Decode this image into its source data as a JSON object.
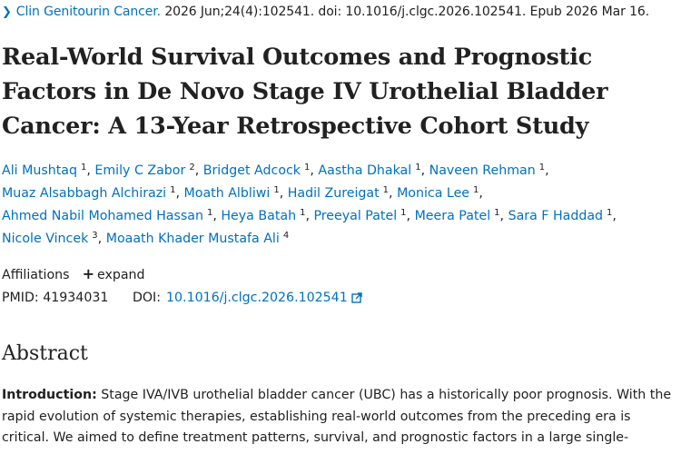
{
  "citation": {
    "journal": "Clin Genitourin Cancer.",
    "details": "2026 Jun;24(4):102541. doi: 10.1016/j.clgc.2026.102541. Epub 2026 Mar 16."
  },
  "title": "Real-World Survival Outcomes and Prognostic Factors in De Novo Stage IV Urothelial Bladder Cancer: A 13-Year Retrospective Cohort Study",
  "authors": [
    {
      "name": "Ali Mushtaq",
      "aff": "1"
    },
    {
      "name": "Emily C Zabor",
      "aff": "2"
    },
    {
      "name": "Bridget Adcock",
      "aff": "1"
    },
    {
      "name": "Aastha Dhakal",
      "aff": "1"
    },
    {
      "name": "Naveen Rehman",
      "aff": "1"
    },
    {
      "name": "Muaz Alsabbagh Alchirazi",
      "aff": "1"
    },
    {
      "name": "Moath Albliwi",
      "aff": "1"
    },
    {
      "name": "Hadil Zureigat",
      "aff": "1"
    },
    {
      "name": "Monica Lee",
      "aff": "1"
    },
    {
      "name": "Ahmed Nabil Mohamed Hassan",
      "aff": "1"
    },
    {
      "name": "Heya Batah",
      "aff": "1"
    },
    {
      "name": "Preeyal Patel",
      "aff": "1"
    },
    {
      "name": "Meera Patel",
      "aff": "1"
    },
    {
      "name": "Sara F Haddad",
      "aff": "1"
    },
    {
      "name": "Nicole Vincek",
      "aff": "3"
    },
    {
      "name": "Moaath Khader Mustafa Ali",
      "aff": "4"
    }
  ],
  "affiliations": {
    "label": "Affiliations",
    "expand": "expand"
  },
  "ids": {
    "pmid_label": "PMID:",
    "pmid": "41934031",
    "doi_label": "DOI:",
    "doi": "10.1016/j.clgc.2026.102541"
  },
  "abstract": {
    "heading": "Abstract",
    "intro_label": "Introduction:",
    "intro_text": "Stage IVA/IVB urothelial bladder cancer (UBC) has a historically poor prognosis. With the rapid evolution of systemic therapies, establishing real-world outcomes from the preceding era is critical. We aimed to define treatment patterns, survival, and prognostic factors in a large single-"
  },
  "colors": {
    "link": "#0071bc",
    "text": "#212121"
  }
}
